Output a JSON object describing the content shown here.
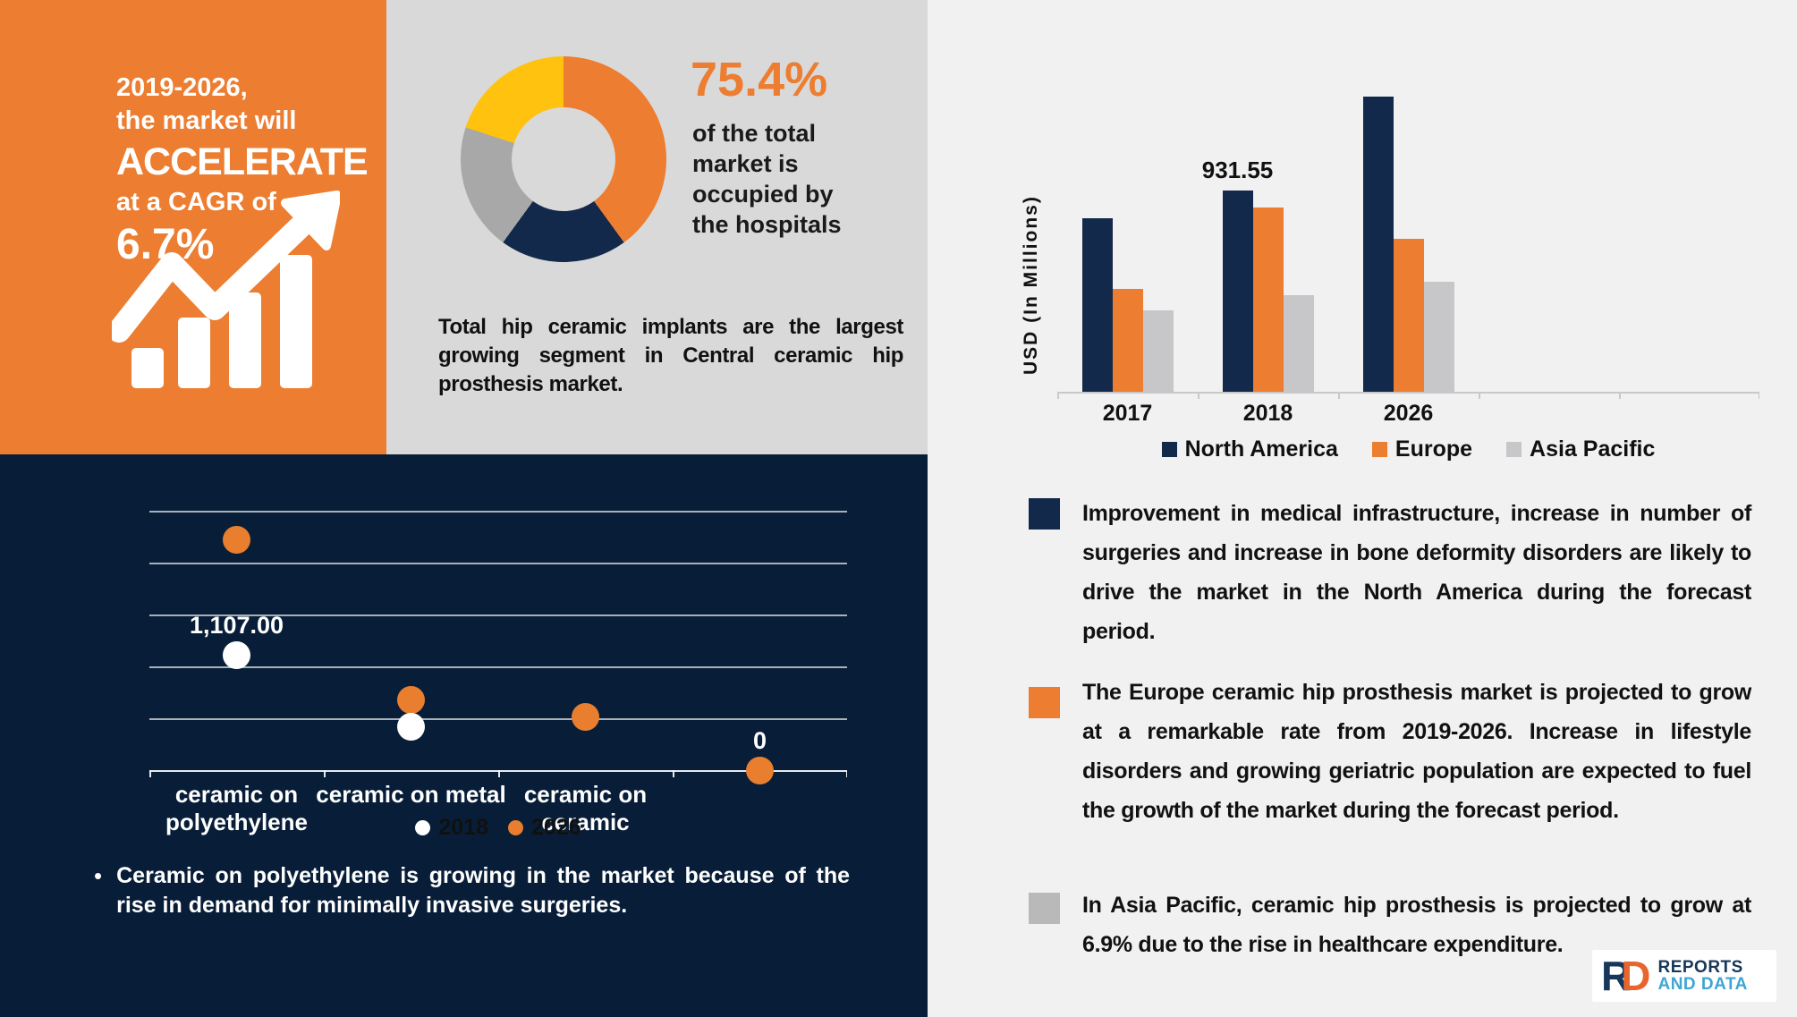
{
  "accelerate_panel": {
    "bg": "#EC7D31",
    "intro_line1": "2019-2026,",
    "intro_line2": "the market will",
    "keyword": "ACCELERATE",
    "cagr_prefix": "at a CAGR of",
    "cagr_value": "6.7%"
  },
  "hospital_panel": {
    "bg": "#D9D9D9",
    "stat_value": "75.4%",
    "stat_caption_lines": [
      "of the total",
      "market is",
      "occupied by",
      "the hospitals"
    ],
    "note": "Total hip ceramic implants are the largest growing segment in Central ceramic hip prosthesis market."
  },
  "segment_panel": {
    "bg": "#081E38",
    "bullet_text": "Ceramic on polyethylene is growing in the market because of the rise in demand for minimally invasive surgeries."
  },
  "regional_section": {
    "insights": [
      {
        "marker_color": "#13294B",
        "text": "Improvement in medical infrastructure, increase in number of surgeries and increase in bone deformity disorders are likely to drive the market in the North America during the forecast period."
      },
      {
        "marker_color": "#EC7D31",
        "text": "The Europe ceramic hip prosthesis market is projected to grow at a remarkable rate from 2019-2026. Increase in lifestyle disorders and growing geriatric population are expected to fuel the growth of the market during the forecast period."
      },
      {
        "marker_color": "#B9B9B9",
        "text": "In Asia Pacific, ceramic hip prosthesis is projected to grow at 6.9% due to the rise in healthcare expenditure."
      }
    ]
  },
  "logo": {
    "mark_r": "R",
    "mark_d": "D",
    "name_line1": "REPORTS",
    "name_line2": "AND DATA",
    "colors": {
      "navy": "#16375A",
      "orange": "#E9652E",
      "blue": "#3FA5D2"
    }
  },
  "chart_data": [
    {
      "id": "regional-market-bar",
      "type": "bar",
      "title": "",
      "ylabel": "USD (In Millions)",
      "categories": [
        "2017",
        "2018",
        "2026"
      ],
      "series": [
        {
          "name": "North America",
          "color": "#13294B",
          "values": [
            805,
            931.55,
            1368
          ],
          "labels": [
            null,
            "931.55",
            null
          ]
        },
        {
          "name": "Europe",
          "color": "#EC7D31",
          "values": [
            478,
            855,
            707
          ],
          "labels": [
            null,
            null,
            null
          ]
        },
        {
          "name": "Asia Pacific",
          "color": "#C7C7CA",
          "values": [
            377,
            449,
            508
          ],
          "labels": [
            null,
            null,
            null
          ]
        }
      ],
      "ylim": [
        0,
        1400
      ],
      "grid": false,
      "legend_position": "bottom"
    },
    {
      "id": "hospital-share-donut",
      "type": "pie",
      "donut": true,
      "hole_ratio": 0.5,
      "slices": [
        {
          "label": "",
          "value": 40,
          "color": "#EC7D31"
        },
        {
          "label": "",
          "value": 20,
          "color": "#13294B"
        },
        {
          "label": "",
          "value": 20,
          "color": "#A8A8A8"
        },
        {
          "label": "",
          "value": 20,
          "color": "#FFC20E"
        }
      ]
    },
    {
      "id": "bearing-type-scatter",
      "type": "scatter",
      "categories": [
        [
          "ceramic on",
          "polyethylene"
        ],
        [
          "ceramic on metal"
        ],
        [
          "ceramic on ceramic"
        ],
        [
          ""
        ]
      ],
      "series": [
        {
          "name": "2018",
          "color": "#FFFFFF",
          "values": [
            1107,
            414,
            null,
            null
          ],
          "labels": [
            "1,107.00",
            null,
            null,
            null
          ]
        },
        {
          "name": "2026",
          "color": "#E87E2E",
          "values": [
            2224,
            681,
            509,
            0
          ],
          "labels": [
            null,
            null,
            null,
            "0"
          ]
        }
      ],
      "ylim": [
        0,
        2500
      ],
      "gridline_values": [
        500,
        1000,
        1500,
        2000,
        2500
      ],
      "legend_position": "bottom"
    }
  ]
}
